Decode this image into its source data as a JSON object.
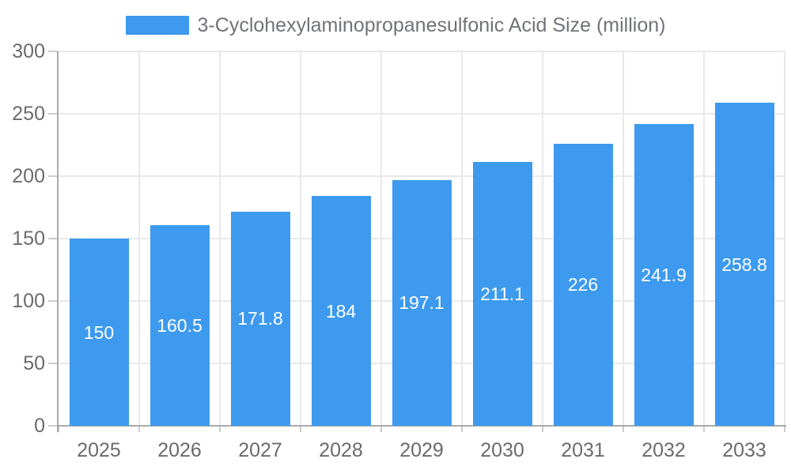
{
  "chart_data": {
    "type": "bar",
    "title": "3-Cyclohexylaminopropanesulfonic Acid Size (million)",
    "series_name": "3-Cyclohexylaminopropanesulfonic Acid Size (million)",
    "categories": [
      "2025",
      "2026",
      "2027",
      "2028",
      "2029",
      "2030",
      "2031",
      "2032",
      "2033"
    ],
    "values": [
      150,
      160.5,
      171.8,
      184,
      197.1,
      211.1,
      226,
      241.9,
      258.8
    ],
    "value_labels": [
      "150",
      "160.5",
      "171.8",
      "184",
      "197.1",
      "211.1",
      "226",
      "241.9",
      "258.8"
    ],
    "xlabel": "",
    "ylabel": "",
    "ylim": [
      0,
      300
    ],
    "yticks": [
      0,
      50,
      100,
      150,
      200,
      250,
      300
    ],
    "grid": true,
    "legend_position": "top"
  },
  "legend": {
    "label": "3-Cyclohexylaminopropanesulfonic Acid Size (million)"
  },
  "styles": {
    "bar_color": "#3D9AEE",
    "grid_color": "#e9e9e9",
    "axis_color": "#ababab",
    "tick_color": "#cccccc",
    "axis_label_color": "#6b6b6b",
    "legend_text_color": "#71737a",
    "value_label_color": "#ffffff",
    "background": "#ffffff"
  }
}
